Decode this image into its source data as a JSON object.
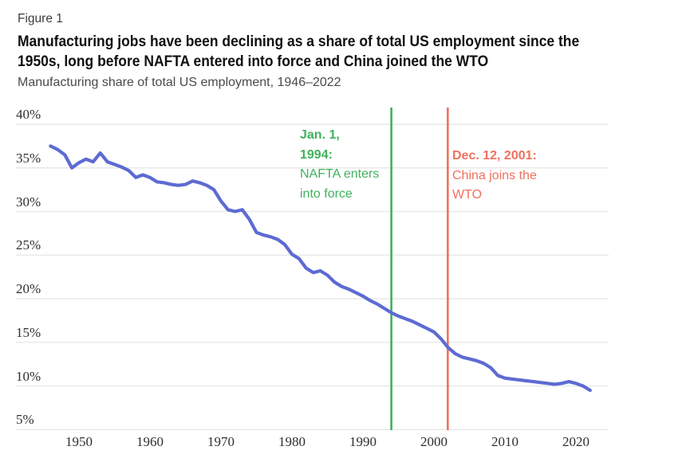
{
  "header": {
    "figure_label": "Figure 1",
    "title_line1": "Manufacturing jobs have been declining as a share of total US employment since the",
    "title_line2": "1950s, long before NAFTA entered into force and China joined the WTO",
    "subtitle": "Manufacturing share of total US employment, 1946–2022"
  },
  "annotations": {
    "nafta": {
      "date_line1": "Jan. 1,",
      "date_line2": "1994:",
      "text_line1": "NAFTA enters",
      "text_line2": "into force",
      "year": 1994.0,
      "color": "#3fb15e"
    },
    "wto": {
      "date_line1": "Dec. 12, 2001:",
      "text_line1": "China joins the",
      "text_line2": "WTO",
      "year": 2001.95,
      "color": "#f0705e"
    }
  },
  "chart_data": {
    "type": "line",
    "title": "Manufacturing jobs have been declining as a share of total US employment since the 1950s, long before NAFTA entered into force and China joined the WTO",
    "subtitle": "Manufacturing share of total US employment, 1946–2022",
    "series_name": "Manufacturing share of total US employment",
    "xlabel": "",
    "ylabel": "",
    "ylim": [
      5,
      40
    ],
    "xlim": [
      1945,
      2024
    ],
    "grid": "horizontal",
    "legend_position": "none",
    "line_color": "#5d6bd2",
    "gridline_color": "#e8e8e8",
    "yticks": [
      {
        "v": 40,
        "label": "40%"
      },
      {
        "v": 35,
        "label": "35%"
      },
      {
        "v": 30,
        "label": "30%"
      },
      {
        "v": 25,
        "label": "25%"
      },
      {
        "v": 20,
        "label": "20%"
      },
      {
        "v": 15,
        "label": "15%"
      },
      {
        "v": 10,
        "label": "10%"
      },
      {
        "v": 5,
        "label": "5%"
      }
    ],
    "xticks": [
      "1950",
      "1960",
      "1970",
      "1980",
      "1990",
      "2000",
      "2010",
      "2020"
    ],
    "x": [
      1946,
      1947,
      1948,
      1949,
      1950,
      1951,
      1952,
      1953,
      1954,
      1955,
      1956,
      1957,
      1958,
      1959,
      1960,
      1961,
      1962,
      1963,
      1964,
      1965,
      1966,
      1967,
      1968,
      1969,
      1970,
      1971,
      1972,
      1973,
      1974,
      1975,
      1976,
      1977,
      1978,
      1979,
      1980,
      1981,
      1982,
      1983,
      1984,
      1985,
      1986,
      1987,
      1988,
      1989,
      1990,
      1991,
      1992,
      1993,
      1994,
      1995,
      1996,
      1997,
      1998,
      1999,
      2000,
      2001,
      2002,
      2003,
      2004,
      2005,
      2006,
      2007,
      2008,
      2009,
      2010,
      2011,
      2012,
      2013,
      2014,
      2015,
      2016,
      2017,
      2018,
      2019,
      2020,
      2021,
      2022
    ],
    "values": [
      37.5,
      37.1,
      36.5,
      35.0,
      35.6,
      36.0,
      35.7,
      36.7,
      35.7,
      35.4,
      35.1,
      34.7,
      33.9,
      34.2,
      33.9,
      33.4,
      33.3,
      33.1,
      33.0,
      33.1,
      33.5,
      33.3,
      33.0,
      32.5,
      31.2,
      30.2,
      30.0,
      30.2,
      29.1,
      27.6,
      27.3,
      27.1,
      26.8,
      26.2,
      25.1,
      24.6,
      23.5,
      23.0,
      23.2,
      22.7,
      21.9,
      21.4,
      21.1,
      20.7,
      20.3,
      19.8,
      19.4,
      18.9,
      18.4,
      18.0,
      17.7,
      17.4,
      17.0,
      16.6,
      16.2,
      15.4,
      14.4,
      13.7,
      13.3,
      13.1,
      12.9,
      12.6,
      12.1,
      11.2,
      10.9,
      10.8,
      10.7,
      10.6,
      10.5,
      10.4,
      10.3,
      10.2,
      10.3,
      10.5,
      10.3,
      10.0,
      9.5
    ]
  }
}
